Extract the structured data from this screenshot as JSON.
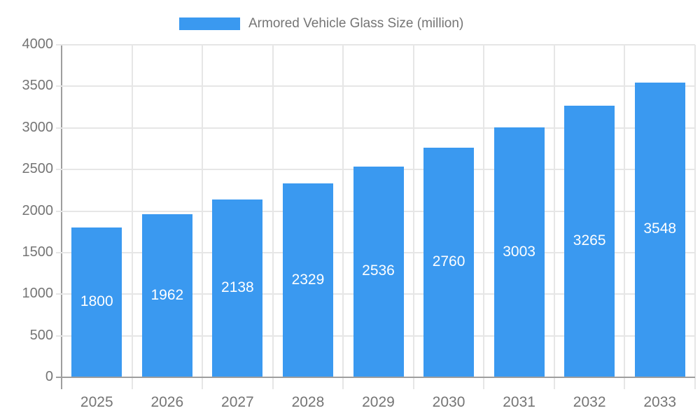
{
  "legend": {
    "label": "Armored Vehicle Glass Size (million)"
  },
  "colors": {
    "bar": "#3a99f0",
    "axis_text": "#757575",
    "grid": "#e6e6e6",
    "baseline": "#9e9e9e",
    "value_label": "#ffffff"
  },
  "chart_data": {
    "type": "bar",
    "title": "Armored Vehicle Glass Size (million)",
    "categories": [
      "2025",
      "2026",
      "2027",
      "2028",
      "2029",
      "2030",
      "2031",
      "2032",
      "2033"
    ],
    "values": [
      1800,
      1962,
      2138,
      2329,
      2536,
      2760,
      3003,
      3265,
      3548
    ],
    "xlabel": "",
    "ylabel": "",
    "ylim": [
      0,
      4000
    ],
    "ytick_step": 500,
    "ytick_labels": [
      "0",
      "500",
      "1000",
      "1500",
      "2000",
      "2500",
      "3000",
      "3500",
      "4000"
    ],
    "grid": true,
    "legend_position": "top",
    "value_labels": "inside-center"
  }
}
